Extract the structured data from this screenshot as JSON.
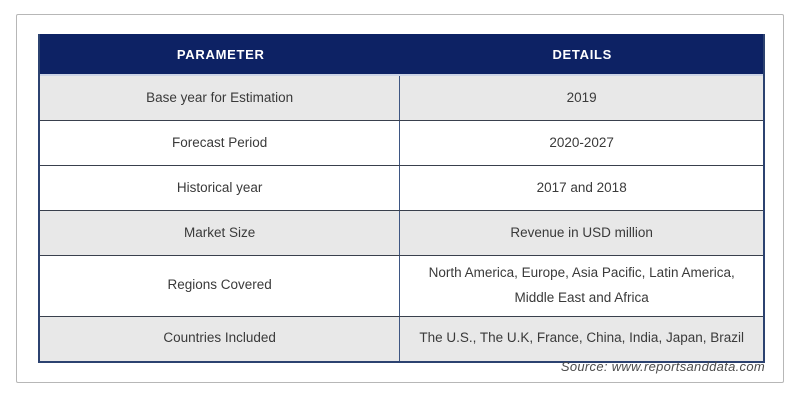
{
  "table": {
    "columns": [
      "PARAMETER",
      "DETAILS"
    ],
    "rows": [
      {
        "parameter": "Base year for Estimation",
        "details": "2019",
        "shaded": true
      },
      {
        "parameter": "Forecast Period",
        "details": "2020-2027",
        "shaded": false
      },
      {
        "parameter": "Historical year",
        "details": "2017 and 2018",
        "shaded": false
      },
      {
        "parameter": "Market Size",
        "details": "Revenue in USD million",
        "shaded": true
      },
      {
        "parameter": "Regions Covered",
        "details": "North America, Europe, Asia Pacific, Latin America, Middle East and Africa",
        "shaded": false
      },
      {
        "parameter": "Countries Included",
        "details": "The U.S., The  U.K, France, China, India, Japan, Brazil",
        "shaded": true
      }
    ]
  },
  "source": {
    "text": "Source: www.reportsanddata.com"
  },
  "colors": {
    "header_bg": "#0d2264",
    "shaded_row_bg": "#e8e8e8",
    "row_border": "#39404d",
    "column_divider": "#3e5682",
    "table_border": "#2c4270",
    "frame_border": "#b7b7b7",
    "body_text": "#3a3a3a",
    "source_text": "#4c4c4c"
  }
}
